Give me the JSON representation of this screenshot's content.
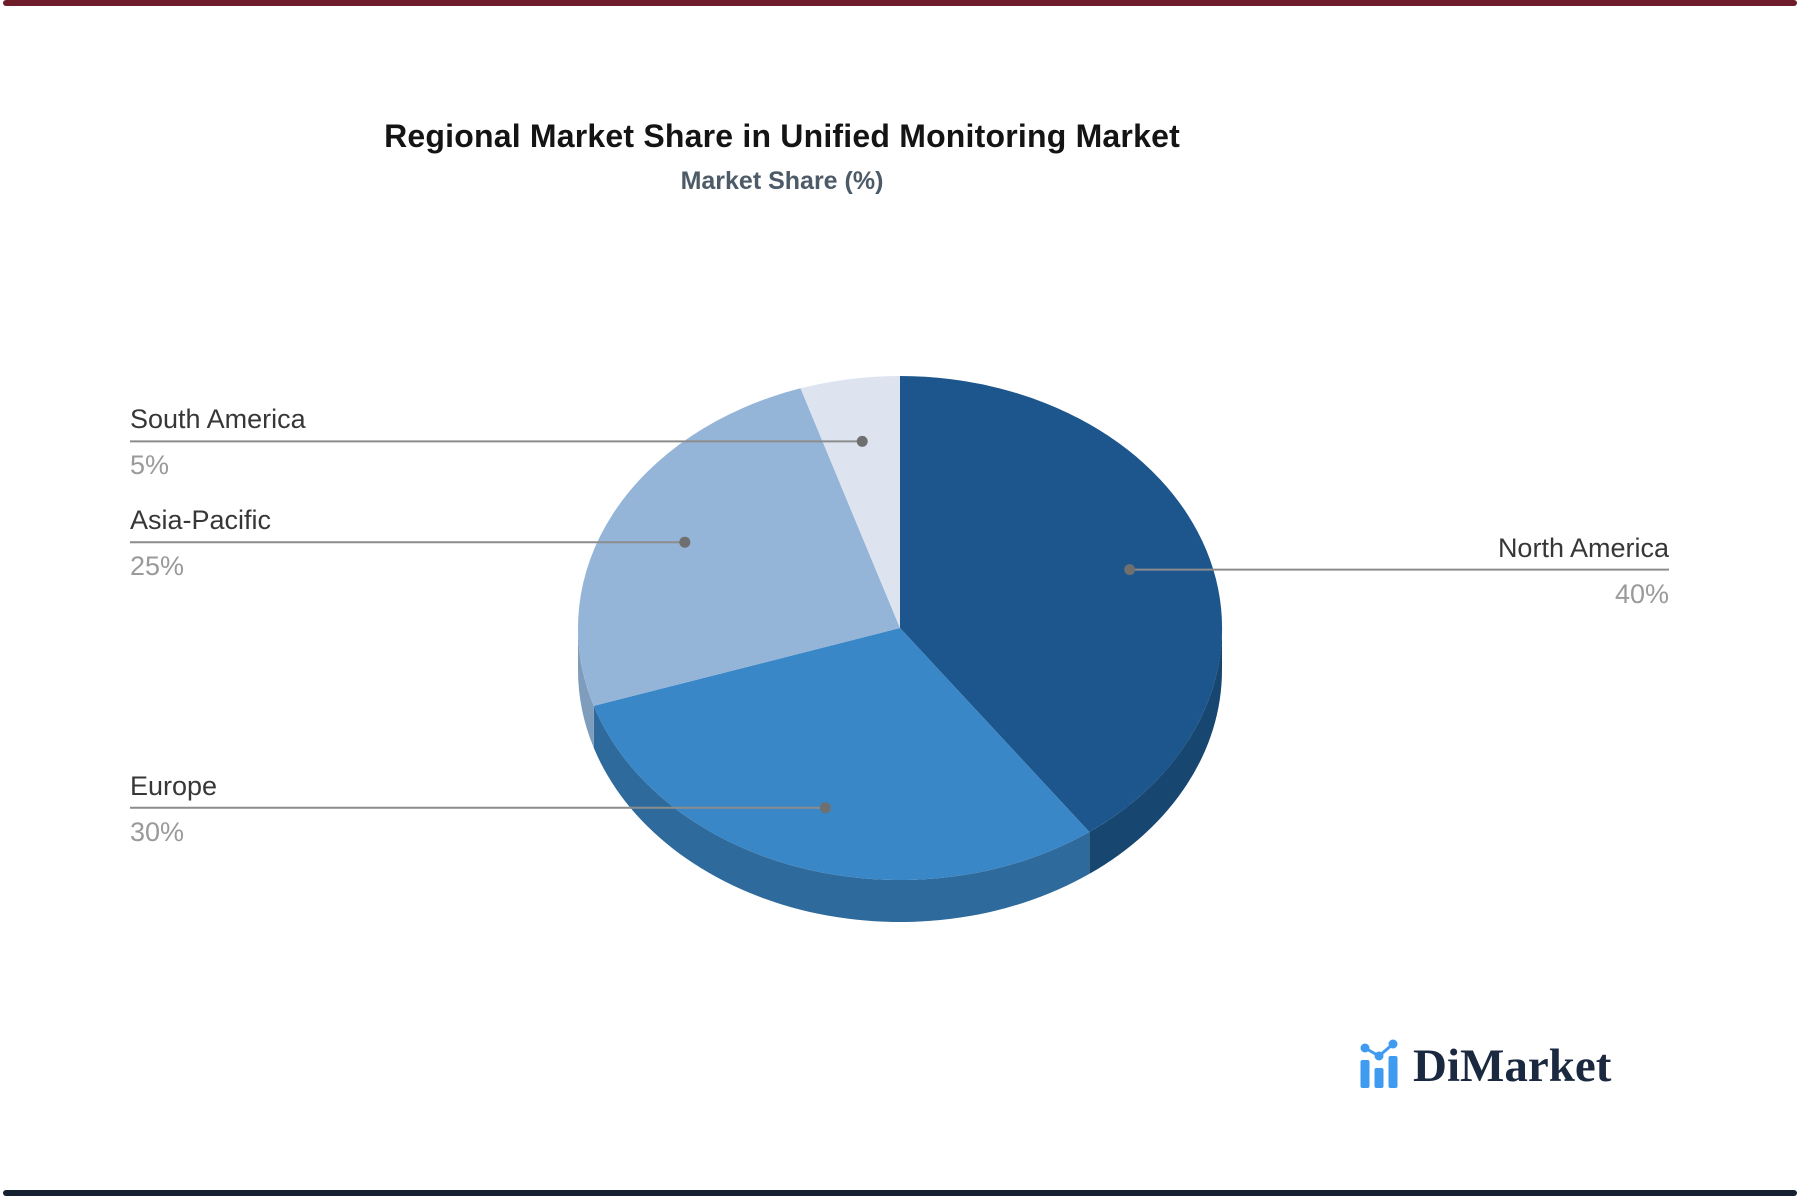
{
  "page": {
    "background": "#ffffff",
    "top_rule_color": "#6f1d2b",
    "bottom_rule_color": "#152031"
  },
  "header": {
    "title": "Regional Market Share in Unified Monitoring Market",
    "subtitle": "Market Share (%)"
  },
  "logo": {
    "text": "DiMarket",
    "accent": "#3f9bf0",
    "text_color": "#1b2940"
  },
  "chart_data": {
    "type": "pie",
    "effect": "3d",
    "title": "Regional Market Share in Unified Monitoring Market",
    "subtitle": "Market Share (%)",
    "unit": "%",
    "start_angle_deg": 0,
    "direction": "clockwise",
    "labels": [
      "North America",
      "Europe",
      "Asia-Pacific",
      "South America"
    ],
    "values": [
      40,
      30,
      25,
      5
    ],
    "display_values": [
      "40%",
      "30%",
      "25%",
      "5%"
    ],
    "colors": [
      "#1d568c",
      "#3a87c8",
      "#94b5d8",
      "#dde4ef"
    ],
    "side_colors": [
      "#174770",
      "#2e6b9c",
      "#7e9cbc",
      "#c9d4e4"
    ],
    "label_side": [
      "right",
      "left",
      "left",
      "left"
    ],
    "legend_position": "callout-labels",
    "leader_line_color": "#8c8c8c",
    "leader_dot_color": "#6f6f6f",
    "label_text_color": "#373737",
    "value_text_color": "#9a9a9a"
  }
}
